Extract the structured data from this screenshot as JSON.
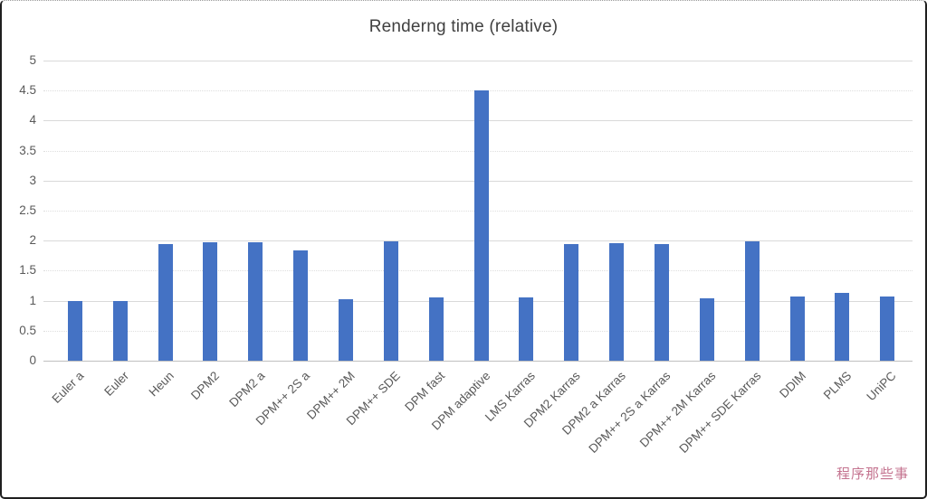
{
  "chart_data": {
    "type": "bar",
    "title": "Renderng time (relative)",
    "categories": [
      "Euler a",
      "Euler",
      "Heun",
      "DPM2",
      "DPM2 a",
      "DPM++ 2S a",
      "DPM++ 2M",
      "DPM++ SDE",
      "DPM fast",
      "DPM adaptive",
      "LMS Karras",
      "DPM2 Karras",
      "DPM2 a Karras",
      "DPM++ 2S a Karras",
      "DPM++ 2M Karras",
      "DPM++ SDE Karras",
      "DDIM",
      "PLMS",
      "UniPC"
    ],
    "values": [
      1.0,
      1.0,
      1.94,
      1.97,
      1.97,
      1.83,
      1.03,
      1.99,
      1.05,
      4.5,
      1.05,
      1.95,
      1.96,
      1.95,
      1.04,
      1.99,
      1.07,
      1.13,
      1.07
    ],
    "xlabel": "",
    "ylabel": "",
    "ylim": [
      0,
      5
    ],
    "yticks": [
      "0",
      "0.5",
      "1",
      "1.5",
      "2",
      "2.5",
      "3",
      "3.5",
      "4",
      "4.5",
      "5"
    ],
    "grid": true,
    "legend_position": "none",
    "bar_color": "#4472C4",
    "gridline_color": "#D9D9D9",
    "axis_text_color": "#595959",
    "title_color": "#404040"
  },
  "watermark": {
    "text": "程序那些事",
    "color": "#C4738F"
  }
}
